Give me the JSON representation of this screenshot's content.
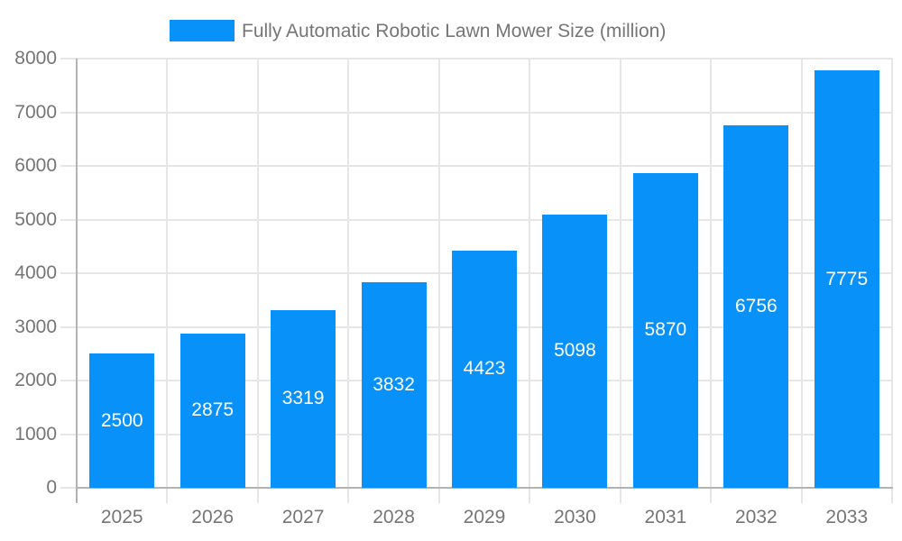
{
  "chart_data": {
    "type": "bar",
    "title": "Fully Automatic Robotic Lawn Mower Size (million)",
    "series": [
      {
        "name": "Fully Automatic Robotic Lawn Mower Size (million)",
        "values": [
          2500,
          2875,
          3319,
          3832,
          4423,
          5098,
          5870,
          6756,
          7775
        ]
      }
    ],
    "categories": [
      "2025",
      "2026",
      "2027",
      "2028",
      "2029",
      "2030",
      "2031",
      "2032",
      "2033"
    ],
    "xlabel": "",
    "ylabel": "",
    "ylim": [
      0,
      8000
    ],
    "ytick_step": 1000,
    "ytick_labels": [
      "0",
      "1000",
      "2000",
      "3000",
      "4000",
      "5000",
      "6000",
      "7000",
      "8000"
    ],
    "grid": true,
    "legend_position": "top-center",
    "bar_value_labels_visible": true,
    "colors": {
      "bar": "#0991fa",
      "axis_text": "#757575",
      "bar_label_text": "#ffffff",
      "gridline": "#e6e6e6",
      "axis_line": "#b3b3b3",
      "background": "#ffffff"
    }
  }
}
